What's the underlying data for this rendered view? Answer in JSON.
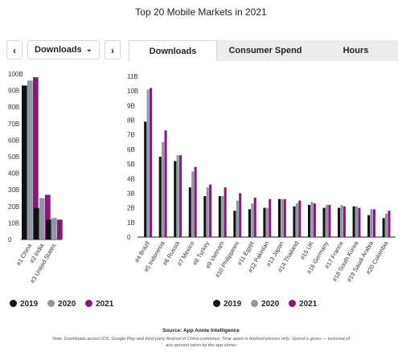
{
  "title": "Top 20 Mobile Markets in 2021",
  "nav": {
    "prev_icon": "‹",
    "next_icon": "›"
  },
  "dropdown": {
    "selected": "Downloads",
    "chevron": "⌄"
  },
  "tabs": [
    {
      "label": "Downloads",
      "active": true
    },
    {
      "label": "Consumer Spend",
      "active": false
    },
    {
      "label": "Hours",
      "active": false
    }
  ],
  "legend": [
    {
      "label": "2019",
      "color": "#111111"
    },
    {
      "label": "2020",
      "color": "#8e96a8"
    },
    {
      "label": "2021",
      "color": "#8a1a7a"
    }
  ],
  "source": "Source: App Annie Intelligence",
  "note": "Note: Downloads across iOS, Google Play and third-party Android in China combined; Time spent is Android phones only; Spend is gross — inclusive of any percent taken by the app stores",
  "chart_data": [
    {
      "type": "bar",
      "categories": [
        "#1 China",
        "#2 India",
        "#3 United States"
      ],
      "series": [
        {
          "name": "2019",
          "values": [
            93,
            19,
            12
          ]
        },
        {
          "name": "2020",
          "values": [
            96,
            25,
            13
          ]
        },
        {
          "name": "2021",
          "values": [
            98,
            27,
            12
          ]
        }
      ],
      "yticks": [
        "0",
        "10B",
        "20B",
        "30B",
        "40B",
        "50B",
        "60B",
        "70B",
        "80B",
        "90B",
        "100B"
      ],
      "ylim": [
        0,
        100
      ]
    },
    {
      "type": "bar",
      "categories": [
        "#4 Brazil",
        "#5 Indonesia",
        "#6 Russia",
        "#7 Mexico",
        "#8 Turkey",
        "#9 Vietnam",
        "#10 Philippines",
        "#11 Egypt",
        "#12 Pakistan",
        "#13 Japan",
        "#14 Thailand",
        "#15 UK",
        "#16 Germany",
        "#17 France",
        "#18 South Korea",
        "#19 Saudi Arabia",
        "#20 Colombia"
      ],
      "series": [
        {
          "name": "2019",
          "values": [
            7.9,
            5.5,
            5.2,
            3.4,
            2.8,
            2.8,
            1.8,
            1.9,
            2.0,
            2.6,
            2.1,
            2.2,
            2.0,
            2.0,
            2.1,
            1.5,
            1.3
          ]
        },
        {
          "name": "2020",
          "values": [
            10.1,
            6.5,
            5.6,
            4.5,
            3.4,
            2.8,
            2.5,
            2.3,
            2.0,
            2.6,
            2.3,
            2.4,
            2.2,
            2.2,
            2.1,
            1.9,
            1.6
          ]
        },
        {
          "name": "2021",
          "values": [
            10.2,
            7.3,
            5.6,
            4.8,
            3.6,
            3.4,
            3.0,
            2.7,
            2.6,
            2.6,
            2.5,
            2.3,
            2.2,
            2.1,
            2.0,
            1.9,
            1.8
          ]
        }
      ],
      "yticks": [
        "0",
        "1B",
        "2B",
        "3B",
        "4B",
        "5B",
        "6B",
        "7B",
        "8B",
        "9B",
        "10B",
        "11B"
      ],
      "ylim": [
        0,
        11
      ]
    }
  ]
}
